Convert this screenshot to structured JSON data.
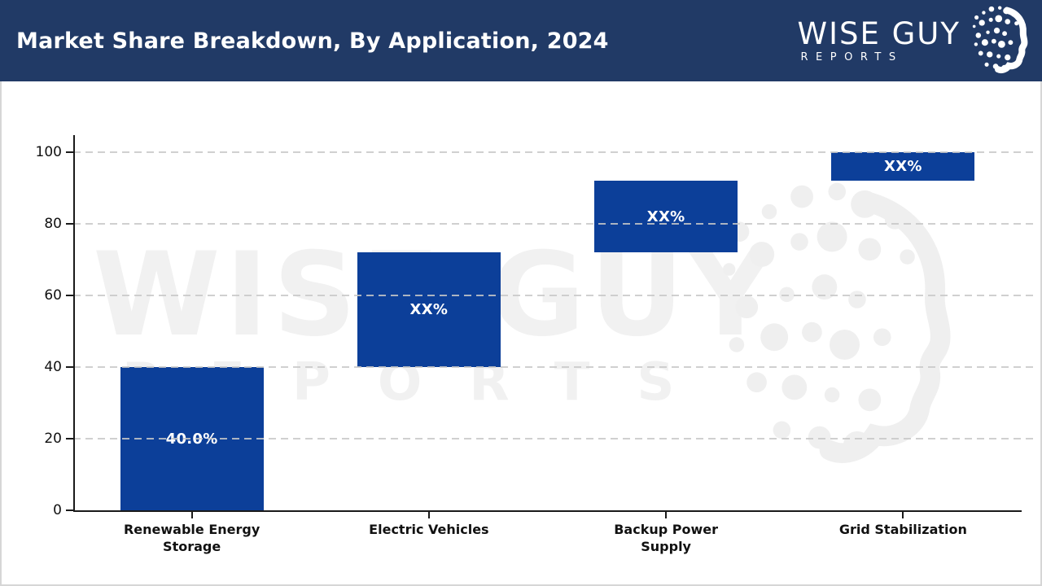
{
  "header": {
    "title": "Market Share Breakdown, By Application, 2024",
    "logo": {
      "line1": "WISE GUY",
      "line2": "REPORTS"
    }
  },
  "watermark": {
    "line1": "WISE GUY",
    "line2": "REPORTS"
  },
  "colors": {
    "header_bg": "#213a66",
    "bar": "#0c3f99",
    "axis": "#1a1a1a",
    "watermark": "#f1f1f1",
    "border": "#d6d6d6"
  },
  "chart_data": {
    "type": "bar",
    "subtype": "waterfall",
    "title": "Market Share Breakdown, By Application, 2024",
    "categories": [
      "Renewable Energy Storage",
      "Electric Vehicles",
      "Backup Power Supply",
      "Grid Stabilization"
    ],
    "category_lines": [
      [
        "Renewable Energy",
        "Storage"
      ],
      [
        "Electric Vehicles"
      ],
      [
        "Backup Power",
        "Supply"
      ],
      [
        "Grid Stabilization"
      ]
    ],
    "series": [
      {
        "name": "Market Share (%)",
        "segment_values": [
          40,
          32,
          20,
          8
        ],
        "starts": [
          0,
          40,
          72,
          92
        ],
        "ends": [
          40,
          72,
          92,
          100
        ]
      }
    ],
    "bar_labels": [
      "40.0%",
      "XX%",
      "XX%",
      "XX%"
    ],
    "xlabel": "",
    "ylabel": "",
    "yticks": [
      0,
      20,
      40,
      60,
      80,
      100
    ],
    "ytick_labels": [
      "0",
      "20",
      "40",
      "60",
      "80",
      "100"
    ],
    "ylim": [
      0,
      105
    ],
    "grid": "horizontal-dashed-over-bars",
    "legend": "none"
  }
}
